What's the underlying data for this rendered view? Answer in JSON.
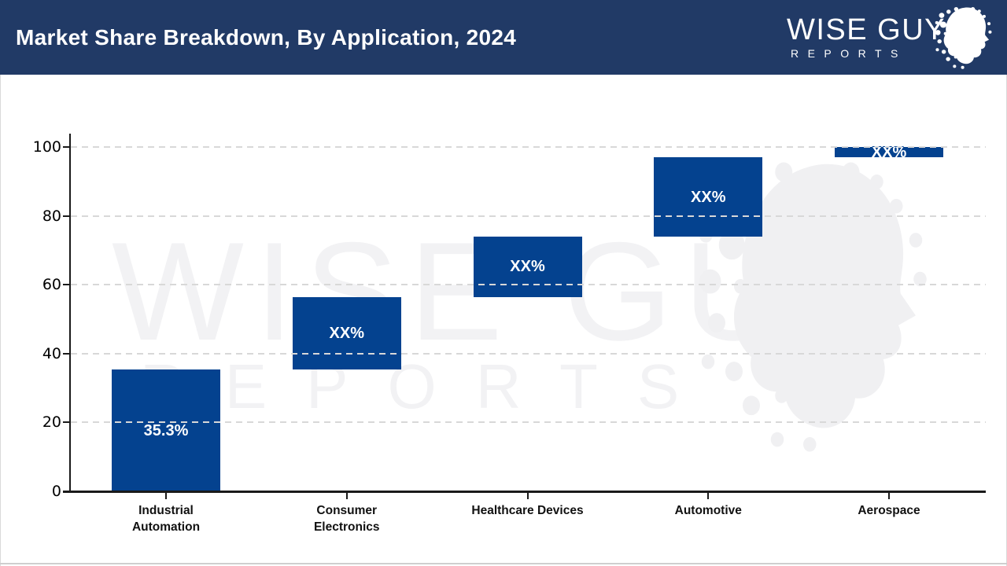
{
  "header": {
    "title": "Market Share Breakdown, By Application, 2024",
    "logo": {
      "name": "WISE GUY",
      "reports": "REPORTS"
    }
  },
  "watermark": {
    "line1": "WISE GUY",
    "line2": "REPORTS"
  },
  "colors": {
    "header_bg": "#213A66",
    "bar": "#04428F",
    "grid": "#D8D8D8",
    "axis": "#1A1A1A",
    "bar_label_text": "#FFFFFF",
    "watermark": "#F2F2F4"
  },
  "chart_data": {
    "type": "bar",
    "variant": "waterfall",
    "title": "Market Share Breakdown, By Application, 2024",
    "categories": [
      [
        "Industrial",
        "Automation"
      ],
      [
        "Consumer",
        "Electronics"
      ],
      [
        "Healthcare Devices"
      ],
      [
        "Automotive"
      ],
      [
        "Aerospace"
      ]
    ],
    "values": [
      35.3,
      21.2,
      17.5,
      23.0,
      3.0
    ],
    "cumulative_start": [
      0,
      35.3,
      56.5,
      74.0,
      97.0
    ],
    "cumulative_end": [
      35.3,
      56.5,
      74.0,
      97.0,
      100.0
    ],
    "bar_labels": [
      "35.3%",
      "XX%",
      "XX%",
      "XX%",
      "XX%"
    ],
    "xlabel": "",
    "ylabel": "",
    "y_ticks": [
      0,
      20,
      40,
      60,
      80,
      100
    ],
    "ylim": [
      0,
      100
    ],
    "grid": "horizontal-dashed",
    "legend": "none",
    "bar_color": "#04428F",
    "label_color": "#FFFFFF"
  }
}
